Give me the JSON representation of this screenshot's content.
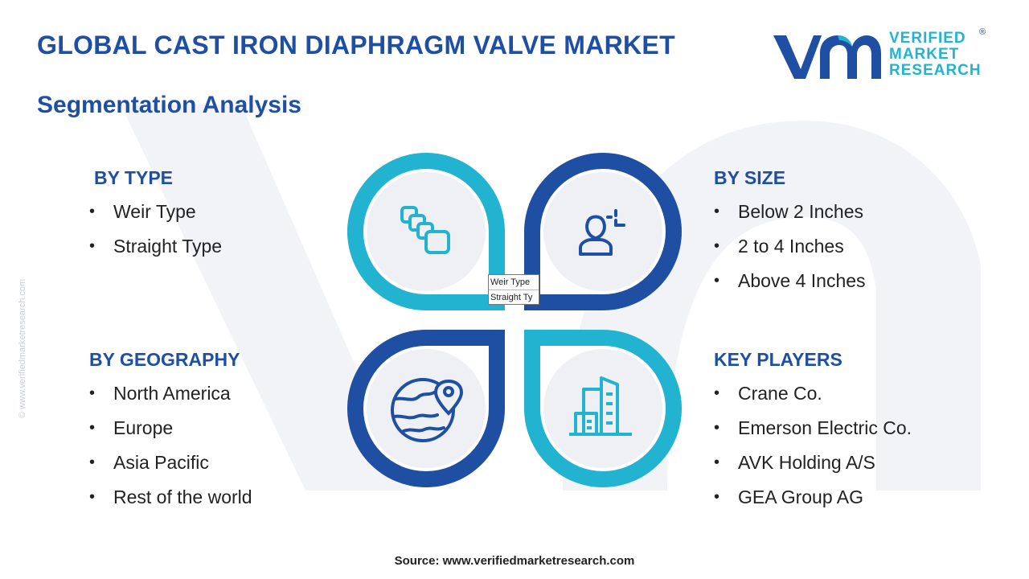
{
  "header": {
    "title": "GLOBAL CAST IRON DIAPHRAGM VALVE MARKET",
    "subtitle": "Segmentation Analysis"
  },
  "logo": {
    "line1": "VERIFIED",
    "line2": "MARKET",
    "line3": "RESEARCH",
    "reg": "®"
  },
  "side_url": "© www.verifiedmarketresearch.com",
  "segments": {
    "type": {
      "heading": "BY TYPE",
      "items": [
        "Weir Type",
        "Straight Type"
      ],
      "icon": "connected-squares-icon"
    },
    "size": {
      "heading": "BY SIZE",
      "items": [
        "Below 2 Inches",
        "2 to 4 Inches",
        "Above 4 Inches"
      ],
      "icon": "user-measure-icon"
    },
    "geography": {
      "heading": "BY GEOGRAPHY",
      "items": [
        "North America",
        "Europe",
        "Asia Pacific",
        "Rest of the world"
      ],
      "icon": "globe-pin-icon"
    },
    "players": {
      "heading": "KEY PLAYERS",
      "items": [
        "Crane Co.",
        "Emerson Electric Co.",
        "AVK Holding A/S",
        "GEA Group AG"
      ],
      "icon": "city-buildings-icon"
    }
  },
  "mini_box": {
    "row1": "Weir Type",
    "row2": "Straight Ty"
  },
  "source": "Source: www.verifiedmarketresearch.com",
  "colors": {
    "dark_blue": "#1f4fa3",
    "light_blue": "#22b3d1",
    "circle_fill": "#eef0f4",
    "text": "#222222"
  }
}
